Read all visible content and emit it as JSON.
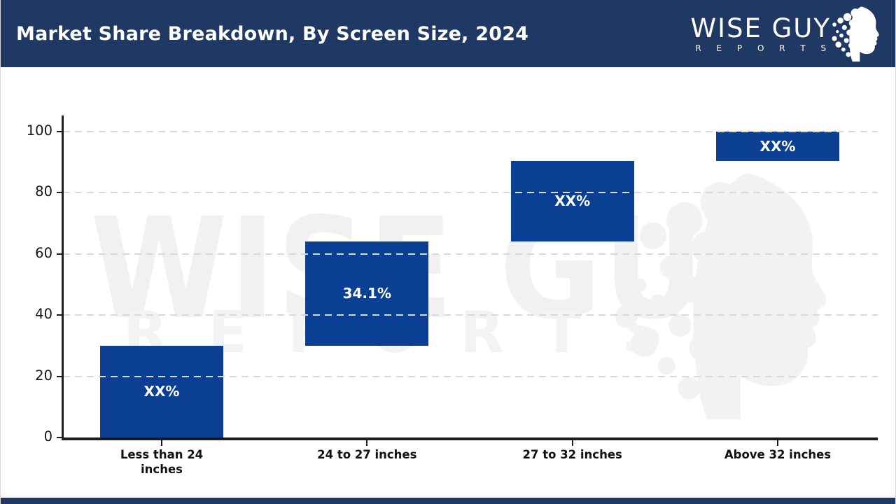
{
  "header": {
    "title": "Market Share Breakdown, By Screen Size, 2024",
    "logo": {
      "wordmark": "WISE GUY",
      "sub": "R E P O R T S"
    }
  },
  "watermark": {
    "wordmark": "WISE GUY",
    "sub": "REPORTS"
  },
  "chart_data": {
    "type": "bar",
    "variant": "floating-waterfall",
    "title": "Market Share Breakdown, By Screen Size, 2024",
    "categories": [
      "Less than 24 inches",
      "24 to 27 inches",
      "27 to 32 inches",
      "Above 32 inches"
    ],
    "bars": [
      {
        "category": "Less than 24 inches",
        "start": 0,
        "end": 30,
        "label": "XX%"
      },
      {
        "category": "24 to 27 inches",
        "start": 30,
        "end": 64.1,
        "label": "34.1%"
      },
      {
        "category": "27 to 32 inches",
        "start": 64.1,
        "end": 90.3,
        "label": "XX%"
      },
      {
        "category": "Above 32 inches",
        "start": 90.3,
        "end": 100,
        "label": "XX%"
      }
    ],
    "xlabel": "",
    "ylabel": "",
    "ylim": [
      0,
      100
    ],
    "yticks": [
      0,
      20,
      40,
      60,
      80,
      100
    ],
    "grid": "horizontal-dashed-over-bars",
    "legend": "none",
    "bar_color": "#0a3f94",
    "bar_label_color": "#ffffff"
  },
  "colors": {
    "header_bg": "#1f3864",
    "footer_bg": "#1f3864",
    "bar": "#0a3f94",
    "grid": "#d9d9d9",
    "axis": "#1c1c1c",
    "watermark": "#f1f1f3"
  }
}
